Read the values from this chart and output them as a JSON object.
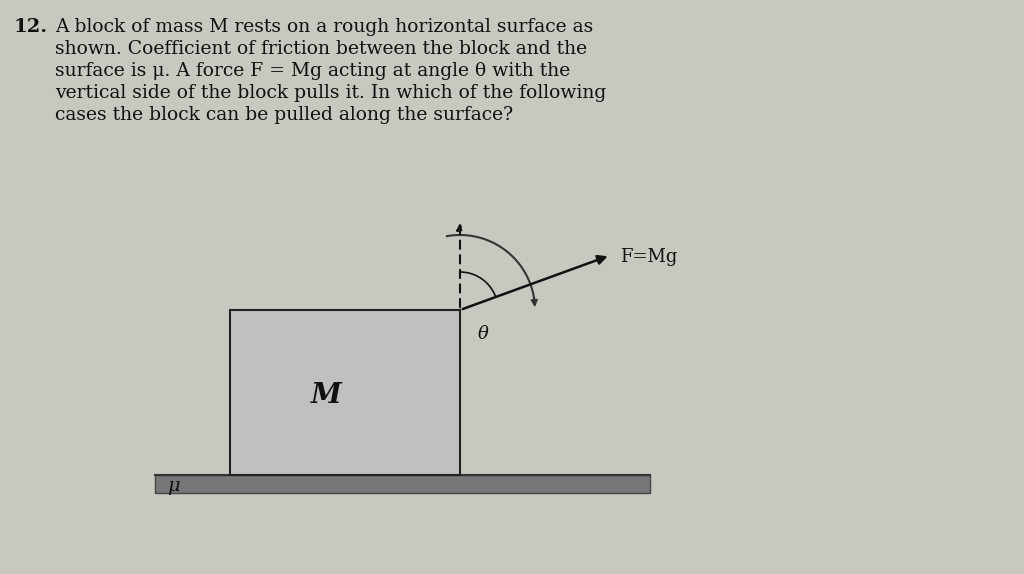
{
  "background_color": "#c8c7c0",
  "text_color": "#111111",
  "problem_number": "12.",
  "problem_text_lines": [
    "A block of mass M rests on a rough horizontal surface as",
    "shown. Coefficient of friction between the block and the",
    "surface is μ. A force F = Mg acting at angle θ with the",
    "vertical side of the block pulls it. In which of the following",
    "cases the block can be pulled along the surface?"
  ],
  "block_fill": "#c0c0be",
  "block_edge": "#222222",
  "ground_fill": "#888888",
  "block_label": "M",
  "mu_label": "μ",
  "theta_label": "θ",
  "fmg_label": "F=Mg",
  "force_arrow_color": "#111111",
  "curve_arrow_color": "#333333"
}
